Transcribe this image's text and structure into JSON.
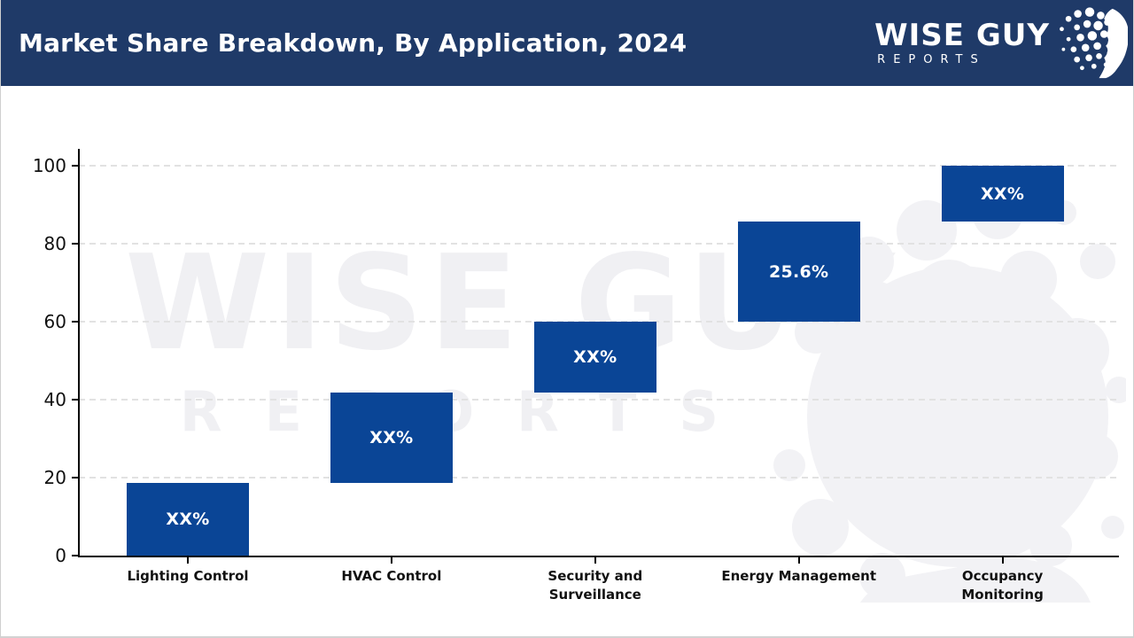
{
  "header": {
    "title": "Market Share Breakdown, By Application, 2024",
    "logo": {
      "line1": "WISE GUY",
      "line2": "REPORTS"
    }
  },
  "watermark": {
    "line1": "WISE GUY",
    "line2": "REPORTS"
  },
  "colors": {
    "header_bg": "#1f3a68",
    "bar": "#0a4596",
    "grid": "#e2e2e2",
    "axis": "#000000",
    "bar_label": "#ffffff",
    "watermark": "#f0f0f3"
  },
  "chart_data": {
    "type": "bar",
    "subtype": "waterfall",
    "title": "Market Share Breakdown, By Application, 2024",
    "xlabel": "",
    "ylabel": "",
    "categories": [
      "Lighting Control",
      "HVAC Control",
      "Security and\nSurveillance",
      "Energy Management",
      "Occupancy\nMonitoring"
    ],
    "segments": [
      {
        "category": "Lighting Control",
        "start": 0,
        "end": 18.6,
        "label": "XX%"
      },
      {
        "category": "HVAC Control",
        "start": 18.6,
        "end": 41.8,
        "label": "XX%"
      },
      {
        "category": "Security and Surveillance",
        "start": 41.8,
        "end": 60.0,
        "label": "XX%"
      },
      {
        "category": "Energy Management",
        "start": 60.0,
        "end": 85.6,
        "label": "25.6%"
      },
      {
        "category": "Occupancy Monitoring",
        "start": 85.6,
        "end": 100.0,
        "label": "XX%"
      }
    ],
    "yticks": [
      0,
      20,
      40,
      60,
      80,
      100
    ],
    "ylim": [
      0,
      105
    ],
    "grid": "horizontal-dashed",
    "legend": "none"
  }
}
